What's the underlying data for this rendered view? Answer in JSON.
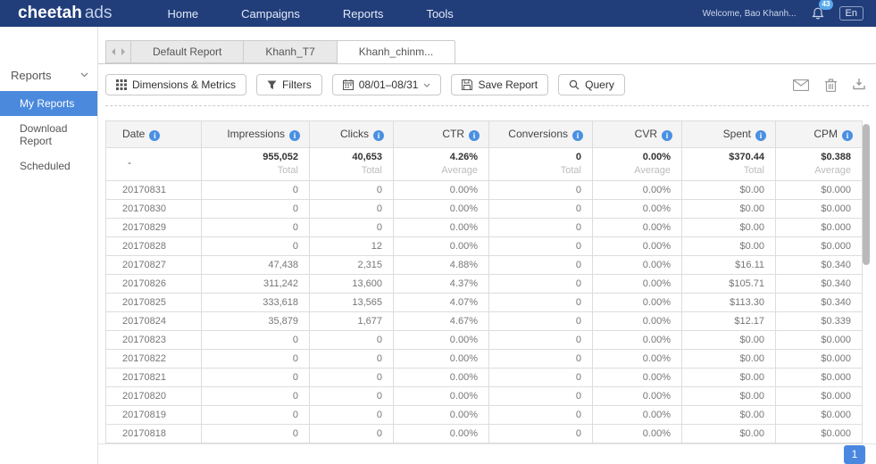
{
  "topbar": {
    "brand_bold": "cheetah",
    "brand_light": "ads",
    "nav": [
      {
        "label": "Home"
      },
      {
        "label": "Campaigns"
      },
      {
        "label": "Reports"
      },
      {
        "label": "Tools"
      }
    ],
    "welcome": "Welcome,",
    "username": "Bao Khanh...",
    "notification_count": "43",
    "language": "En"
  },
  "sidebar": {
    "section": "Reports",
    "items": [
      {
        "label": "My Reports",
        "active": true
      },
      {
        "label": "Download Report",
        "active": false
      },
      {
        "label": "Scheduled",
        "active": false
      }
    ]
  },
  "tabs": [
    {
      "label": "Default Report",
      "active": false
    },
    {
      "label": "Khanh_T7",
      "active": false
    },
    {
      "label": "Khanh_chinm...",
      "active": true
    }
  ],
  "toolbar": {
    "dimensions_metrics": "Dimensions & Metrics",
    "filters": "Filters",
    "date_range": "08/01–08/31",
    "save_report": "Save Report",
    "query": "Query",
    "icons": [
      "mail-icon",
      "trash-icon",
      "download-icon"
    ]
  },
  "table": {
    "columns": [
      "Date",
      "Impressions",
      "Clicks",
      "CTR",
      "Conversions",
      "CVR",
      "Spent",
      "CPM"
    ],
    "info_icon_glyph": "i",
    "summary": {
      "date": "-",
      "values": [
        "955,052",
        "40,653",
        "4.26%",
        "0",
        "0.00%",
        "$370.44",
        "$0.388"
      ],
      "labels": [
        "Total",
        "Total",
        "Average",
        "Total",
        "Average",
        "Total",
        "Average"
      ]
    },
    "rows": [
      [
        "20170831",
        "0",
        "0",
        "0.00%",
        "0",
        "0.00%",
        "$0.00",
        "$0.000"
      ],
      [
        "20170830",
        "0",
        "0",
        "0.00%",
        "0",
        "0.00%",
        "$0.00",
        "$0.000"
      ],
      [
        "20170829",
        "0",
        "0",
        "0.00%",
        "0",
        "0.00%",
        "$0.00",
        "$0.000"
      ],
      [
        "20170828",
        "0",
        "12",
        "0.00%",
        "0",
        "0.00%",
        "$0.00",
        "$0.000"
      ],
      [
        "20170827",
        "47,438",
        "2,315",
        "4.88%",
        "0",
        "0.00%",
        "$16.11",
        "$0.340"
      ],
      [
        "20170826",
        "311,242",
        "13,600",
        "4.37%",
        "0",
        "0.00%",
        "$105.71",
        "$0.340"
      ],
      [
        "20170825",
        "333,618",
        "13,565",
        "4.07%",
        "0",
        "0.00%",
        "$113.30",
        "$0.340"
      ],
      [
        "20170824",
        "35,879",
        "1,677",
        "4.67%",
        "0",
        "0.00%",
        "$12.17",
        "$0.339"
      ],
      [
        "20170823",
        "0",
        "0",
        "0.00%",
        "0",
        "0.00%",
        "$0.00",
        "$0.000"
      ],
      [
        "20170822",
        "0",
        "0",
        "0.00%",
        "0",
        "0.00%",
        "$0.00",
        "$0.000"
      ],
      [
        "20170821",
        "0",
        "0",
        "0.00%",
        "0",
        "0.00%",
        "$0.00",
        "$0.000"
      ],
      [
        "20170820",
        "0",
        "0",
        "0.00%",
        "0",
        "0.00%",
        "$0.00",
        "$0.000"
      ],
      [
        "20170819",
        "0",
        "0",
        "0.00%",
        "0",
        "0.00%",
        "$0.00",
        "$0.000"
      ],
      [
        "20170818",
        "0",
        "0",
        "0.00%",
        "0",
        "0.00%",
        "$0.00",
        "$0.000"
      ]
    ]
  },
  "pagination": {
    "current_page": "1"
  },
  "colors": {
    "topbar_bg": "#213e7b",
    "accent_blue": "#4a89dc",
    "info_icon_blue": "#4a90e2",
    "badge_blue": "#59a9ec",
    "pagination_blue": "#4a87e0",
    "header_gray": "#f4f4f4",
    "border_gray": "#dddddd"
  }
}
